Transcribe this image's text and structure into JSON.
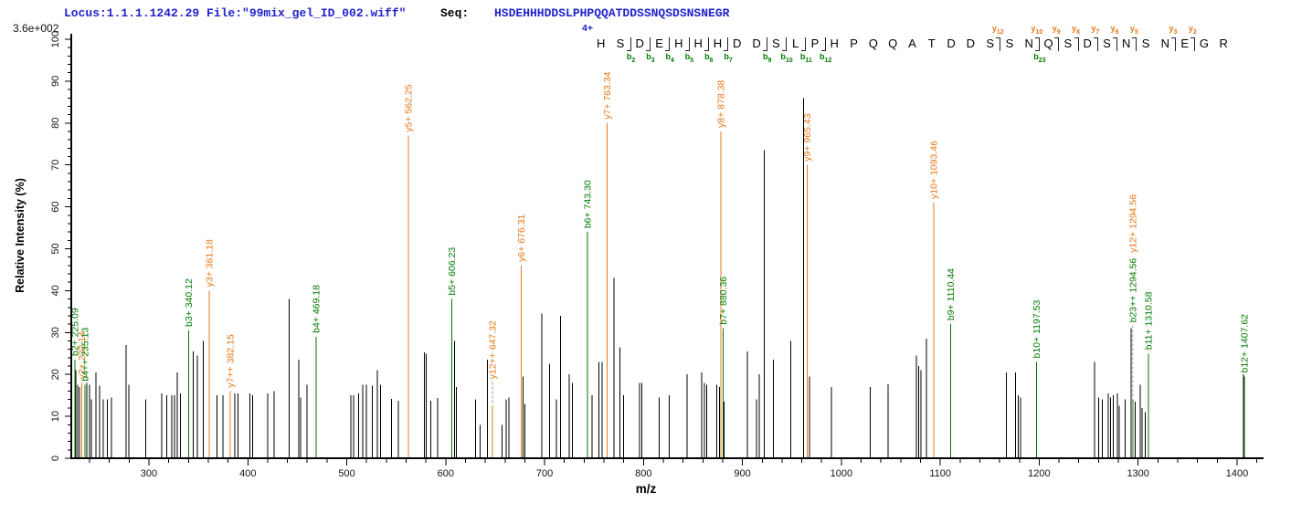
{
  "header": {
    "locus": "Locus:1.1.1.1242.29 File:\"99mix_gel_ID_002.wiff\"",
    "seq_label": "Seq:",
    "sequence": "HSDEHHHDDSLPHPQQATDDSSNQSDSNSNEGR",
    "max_intensity": "3.6e+002",
    "precursor_charge": "4+"
  },
  "sequence_display": {
    "residues": "HSDEHHHDDSLPHPQQATDDSSNQSDSNSNEGR",
    "b_ions": [
      2,
      3,
      4,
      5,
      6,
      7,
      9,
      10,
      11,
      12,
      23
    ],
    "y_ions": [
      12,
      10,
      9,
      8,
      7,
      6,
      5,
      3,
      2
    ]
  },
  "colors": {
    "b_ion": "#007a00",
    "y_ion": "#e87818",
    "peak": "#000000",
    "axis": "#000000",
    "header_blue": "#2222cc",
    "dash_leader": "#9a9a9a"
  },
  "chart_data": {
    "type": "bar",
    "subtype": "ms2-stick-spectrum",
    "title": "",
    "xlabel": "m/z",
    "ylabel": "Relative  Intensity (%)",
    "xlim": [
      221.5,
      1427
    ],
    "ylim": [
      0,
      100
    ],
    "x_major_ticks": [
      300,
      400,
      500,
      600,
      700,
      800,
      900,
      1000,
      1100,
      1200,
      1300,
      1400
    ],
    "x_minor_step": 20,
    "y_major_ticks": [
      0,
      10,
      20,
      30,
      40,
      50,
      60,
      70,
      80,
      90,
      100
    ],
    "y_minor_step": 2,
    "grid": false,
    "legend": "none",
    "peaks": [
      {
        "mz": 225.09,
        "pct": 23.5,
        "ion": "b",
        "label": "b2+ 225.09"
      },
      {
        "mz": 226,
        "pct": 21
      },
      {
        "mz": 228,
        "pct": 17.5
      },
      {
        "mz": 230,
        "pct": 17
      },
      {
        "mz": 232.14,
        "pct": 18,
        "ion": "y",
        "label": "y2+ 232.14"
      },
      {
        "mz": 235.13,
        "pct": 17.5,
        "ion": "b",
        "label": "b4++ 235.13"
      },
      {
        "mz": 237,
        "pct": 18
      },
      {
        "mz": 240,
        "pct": 17.5
      },
      {
        "mz": 242,
        "pct": 14
      },
      {
        "mz": 246.5,
        "pct": 20.5
      },
      {
        "mz": 250,
        "pct": 17.3
      },
      {
        "mz": 254,
        "pct": 14
      },
      {
        "mz": 258,
        "pct": 14
      },
      {
        "mz": 262,
        "pct": 14.5
      },
      {
        "mz": 277,
        "pct": 27
      },
      {
        "mz": 279.5,
        "pct": 17.5
      },
      {
        "mz": 297,
        "pct": 14
      },
      {
        "mz": 313,
        "pct": 15.5
      },
      {
        "mz": 318,
        "pct": 15
      },
      {
        "mz": 323,
        "pct": 15
      },
      {
        "mz": 326,
        "pct": 15
      },
      {
        "mz": 328.5,
        "pct": 20.5
      },
      {
        "mz": 332,
        "pct": 15.5
      },
      {
        "mz": 340.12,
        "pct": 30.5,
        "ion": "b",
        "label": "b3+ 340.12"
      },
      {
        "mz": 345,
        "pct": 25.5
      },
      {
        "mz": 349,
        "pct": 24.5
      },
      {
        "mz": 355,
        "pct": 28
      },
      {
        "mz": 361.18,
        "pct": 40,
        "ion": "y",
        "label": "y3+ 361.18"
      },
      {
        "mz": 369,
        "pct": 15
      },
      {
        "mz": 375,
        "pct": 15
      },
      {
        "mz": 382.15,
        "pct": 16,
        "ion": "y",
        "label": "y7++ 382.15"
      },
      {
        "mz": 387,
        "pct": 15.5
      },
      {
        "mz": 390,
        "pct": 15.5
      },
      {
        "mz": 402,
        "pct": 15.5
      },
      {
        "mz": 405,
        "pct": 15
      },
      {
        "mz": 420,
        "pct": 15.5
      },
      {
        "mz": 426.5,
        "pct": 16
      },
      {
        "mz": 442,
        "pct": 38
      },
      {
        "mz": 451.5,
        "pct": 23.5
      },
      {
        "mz": 453.5,
        "pct": 14.5
      },
      {
        "mz": 460,
        "pct": 17.5
      },
      {
        "mz": 469.18,
        "pct": 29,
        "ion": "b",
        "label": "b4+ 469.18"
      },
      {
        "mz": 504,
        "pct": 15
      },
      {
        "mz": 507,
        "pct": 15
      },
      {
        "mz": 512,
        "pct": 15.5
      },
      {
        "mz": 516,
        "pct": 17.5
      },
      {
        "mz": 520,
        "pct": 17.5
      },
      {
        "mz": 526,
        "pct": 17.3
      },
      {
        "mz": 531,
        "pct": 21
      },
      {
        "mz": 534,
        "pct": 17.5
      },
      {
        "mz": 545,
        "pct": 14.2
      },
      {
        "mz": 552,
        "pct": 13.7
      },
      {
        "mz": 562.25,
        "pct": 77,
        "ion": "y",
        "label": "y5+ 562.25"
      },
      {
        "mz": 578.5,
        "pct": 25.3
      },
      {
        "mz": 580.5,
        "pct": 25
      },
      {
        "mz": 585,
        "pct": 13.7
      },
      {
        "mz": 592,
        "pct": 14.4
      },
      {
        "mz": 606.23,
        "pct": 38,
        "ion": "b",
        "label": "b5+ 606.23"
      },
      {
        "mz": 609,
        "pct": 28
      },
      {
        "mz": 611,
        "pct": 17
      },
      {
        "mz": 630,
        "pct": 14
      },
      {
        "mz": 635,
        "pct": 8
      },
      {
        "mz": 642,
        "pct": 23.5
      },
      {
        "mz": 647.32,
        "pct": 12.5,
        "ion": "y",
        "label": "y12++ 647.32",
        "dashed": true,
        "label_pct": 18
      },
      {
        "mz": 657,
        "pct": 8
      },
      {
        "mz": 661,
        "pct": 14
      },
      {
        "mz": 664,
        "pct": 14.5
      },
      {
        "mz": 676.31,
        "pct": 46,
        "ion": "y",
        "label": "y6+ 676.31"
      },
      {
        "mz": 678,
        "pct": 19.5
      },
      {
        "mz": 680,
        "pct": 13
      },
      {
        "mz": 697,
        "pct": 34.5
      },
      {
        "mz": 705,
        "pct": 22.5
      },
      {
        "mz": 712,
        "pct": 14
      },
      {
        "mz": 716,
        "pct": 34
      },
      {
        "mz": 725,
        "pct": 20
      },
      {
        "mz": 728,
        "pct": 18
      },
      {
        "mz": 743.3,
        "pct": 54,
        "ion": "b",
        "label": "b6+ 743.30"
      },
      {
        "mz": 748,
        "pct": 15
      },
      {
        "mz": 755,
        "pct": 23
      },
      {
        "mz": 758,
        "pct": 23
      },
      {
        "mz": 763.34,
        "pct": 80,
        "ion": "y",
        "label": "y7+ 763.34"
      },
      {
        "mz": 770,
        "pct": 43
      },
      {
        "mz": 776,
        "pct": 26.5
      },
      {
        "mz": 780,
        "pct": 15
      },
      {
        "mz": 796,
        "pct": 18
      },
      {
        "mz": 798.5,
        "pct": 18
      },
      {
        "mz": 816,
        "pct": 14.5
      },
      {
        "mz": 826,
        "pct": 15
      },
      {
        "mz": 844,
        "pct": 20
      },
      {
        "mz": 859,
        "pct": 20.5
      },
      {
        "mz": 861.5,
        "pct": 18
      },
      {
        "mz": 864,
        "pct": 17.5
      },
      {
        "mz": 874,
        "pct": 17.5
      },
      {
        "mz": 877,
        "pct": 17
      },
      {
        "mz": 878.38,
        "pct": 78,
        "ion": "y",
        "label": "y8+ 878.38"
      },
      {
        "mz": 880.36,
        "pct": 31,
        "ion": "b",
        "label": "b7+ 880.36"
      },
      {
        "mz": 881.5,
        "pct": 13.5
      },
      {
        "mz": 905,
        "pct": 25.5
      },
      {
        "mz": 914,
        "pct": 14
      },
      {
        "mz": 917,
        "pct": 20
      },
      {
        "mz": 922,
        "pct": 73.5
      },
      {
        "mz": 931.5,
        "pct": 23.5
      },
      {
        "mz": 949,
        "pct": 28
      },
      {
        "mz": 962,
        "pct": 86
      },
      {
        "mz": 965.43,
        "pct": 70,
        "ion": "y",
        "label": "y9+ 965.43"
      },
      {
        "mz": 968,
        "pct": 19.5
      },
      {
        "mz": 990,
        "pct": 17
      },
      {
        "mz": 1029,
        "pct": 17
      },
      {
        "mz": 1047,
        "pct": 17.7
      },
      {
        "mz": 1076,
        "pct": 24.5
      },
      {
        "mz": 1078,
        "pct": 22
      },
      {
        "mz": 1080.5,
        "pct": 21
      },
      {
        "mz": 1086,
        "pct": 28.5
      },
      {
        "mz": 1093.46,
        "pct": 61,
        "ion": "y",
        "label": "y10+ 1093.46"
      },
      {
        "mz": 1110.44,
        "pct": 32,
        "ion": "b",
        "label": "b9+ 1110.44"
      },
      {
        "mz": 1167,
        "pct": 20.5
      },
      {
        "mz": 1176,
        "pct": 20.5
      },
      {
        "mz": 1179,
        "pct": 15
      },
      {
        "mz": 1181,
        "pct": 14.5
      },
      {
        "mz": 1197.53,
        "pct": 23,
        "ion": "b",
        "label": "b10+ 1197.53"
      },
      {
        "mz": 1256,
        "pct": 23
      },
      {
        "mz": 1260,
        "pct": 14.5
      },
      {
        "mz": 1264,
        "pct": 14
      },
      {
        "mz": 1270,
        "pct": 15.5
      },
      {
        "mz": 1272,
        "pct": 14.5
      },
      {
        "mz": 1275,
        "pct": 15
      },
      {
        "mz": 1279,
        "pct": 15.5
      },
      {
        "mz": 1281,
        "pct": 12.5
      },
      {
        "mz": 1287,
        "pct": 14
      },
      {
        "mz": 1293,
        "pct": 31
      },
      {
        "mz": 1294.56,
        "pct": 14,
        "ion": "b",
        "label": "b23++ 1294.56",
        "dashed": true,
        "label_pct": 31.5,
        "label2": "y12+ 1294.56",
        "label2_ion": "y"
      },
      {
        "mz": 1297,
        "pct": 13.5
      },
      {
        "mz": 1302,
        "pct": 17.5
      },
      {
        "mz": 1304,
        "pct": 12
      },
      {
        "mz": 1307,
        "pct": 11
      },
      {
        "mz": 1310.58,
        "pct": 25,
        "ion": "b",
        "label": "b11+ 1310.58"
      },
      {
        "mz": 1406.5,
        "pct": 20
      },
      {
        "mz": 1407.62,
        "pct": 19.5,
        "ion": "b",
        "label": "b12+ 1407.62"
      }
    ]
  }
}
